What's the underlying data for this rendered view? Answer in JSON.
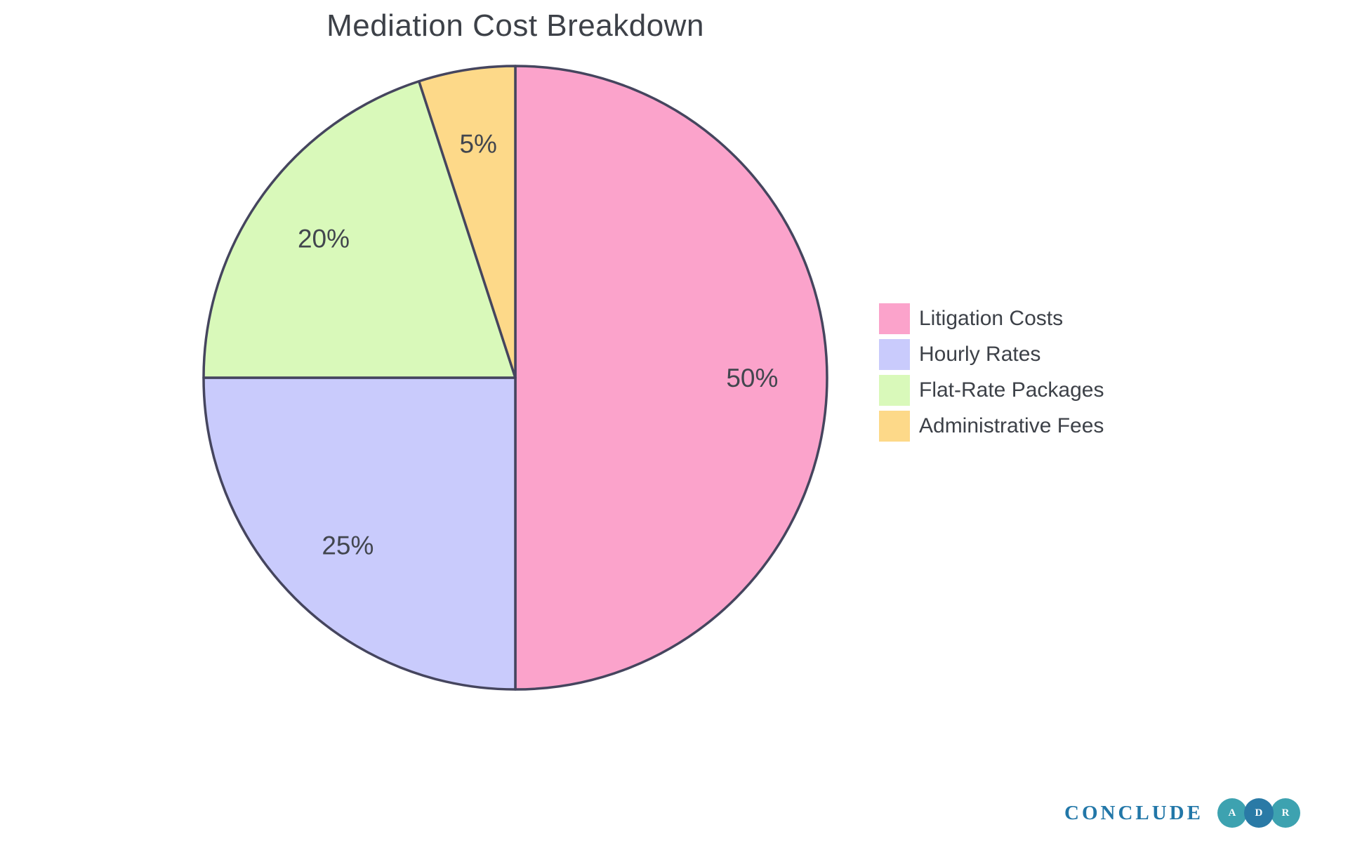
{
  "title": "Mediation Cost Breakdown",
  "chart_data": {
    "type": "pie",
    "categories": [
      "Litigation Costs",
      "Hourly Rates",
      "Flat-Rate Packages",
      "Administrative Fees"
    ],
    "values": [
      50,
      25,
      20,
      5
    ],
    "slice_labels": [
      "50%",
      "25%",
      "20%",
      "5%"
    ],
    "colors": [
      "#fba3cb",
      "#c9cbfc",
      "#d9f9ba",
      "#fdd989"
    ],
    "slice_border_color": "#45455e",
    "title": "Mediation Cost Breakdown",
    "start_angle_deg": 0,
    "direction": "clockwise",
    "legend_position": "right",
    "label_text_color": "#42464e"
  },
  "legend": {
    "items": [
      {
        "label": "Litigation Costs",
        "color": "#fba3cb"
      },
      {
        "label": "Hourly Rates",
        "color": "#c9cbfc"
      },
      {
        "label": "Flat-Rate Packages",
        "color": "#d9f9ba"
      },
      {
        "label": "Administrative Fees",
        "color": "#fdd989"
      }
    ]
  },
  "branding": {
    "wordmark": "CONCLUDE",
    "wordmark_color": "#2277a8",
    "badge_letters": [
      "A",
      "D",
      "R"
    ],
    "badge_colors": [
      "#3da2b0",
      "#2a7aa6",
      "#3da2b0"
    ]
  }
}
